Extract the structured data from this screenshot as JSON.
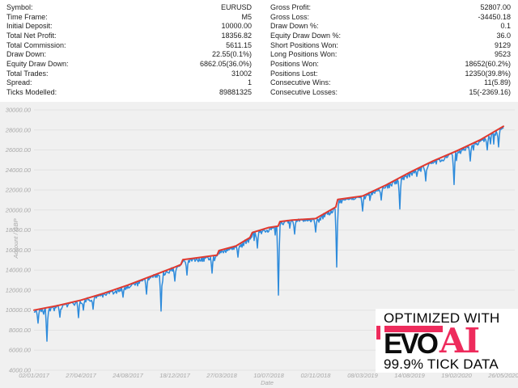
{
  "report": {
    "left": [
      {
        "label": "Symbol:",
        "value": "EURUSD"
      },
      {
        "label": "Time Frame:",
        "value": "M5"
      },
      {
        "label": "Initial Deposit:",
        "value": "10000.00"
      },
      {
        "label": "Total Net Profit:",
        "value": "18356.82"
      },
      {
        "label": "Total Commission:",
        "value": "5611.15"
      },
      {
        "label": "Draw Down:",
        "value": "22.55(0.1%)"
      },
      {
        "label": "Equity Draw Down:",
        "value": "6862.05(36.0%)"
      },
      {
        "label": "Total Trades:",
        "value": "31002"
      },
      {
        "label": "Spread:",
        "value": "1"
      },
      {
        "label": "Ticks Modelled:",
        "value": "89881325"
      }
    ],
    "right": [
      {
        "label": "Gross Profit:",
        "value": "52807.00"
      },
      {
        "label": "Gross Loss:",
        "value": "-34450.18"
      },
      {
        "label": "Draw Down %:",
        "value": "0.1"
      },
      {
        "label": "Equity Draw Down %:",
        "value": "36.0"
      },
      {
        "label": "Short Positions Won:",
        "value": "9129"
      },
      {
        "label": "Long Positions Won:",
        "value": "9523"
      },
      {
        "label": "Positions Won:",
        "value": "18652(60.2%)"
      },
      {
        "label": "Positions Lost:",
        "value": "12350(39.8%)"
      },
      {
        "label": "Consecutive Wins:",
        "value": "11(5.89)"
      },
      {
        "label": "Consecutive Losses:",
        "value": "15(-2369.16)"
      }
    ]
  },
  "logo": {
    "line1": "OPTIMIZED WITH",
    "brand_black": "EVO",
    "brand_pink": "AI",
    "line2": "99.9% TICK DATA",
    "pink": "#ee2b5c"
  },
  "colors": {
    "header_bg": "#ffffff",
    "chart_bg": "#f0f0f0",
    "grid": "#e2e2e2",
    "axis_text": "#a8a8a8",
    "equity_blue": "#2e8bdb",
    "balance_red": "#e0392f"
  },
  "chart_data": {
    "type": "line",
    "title": "",
    "xlabel": "Date",
    "ylabel": "Account / GBP",
    "grid": "horizontal",
    "legend": "none",
    "ylim": [
      4000,
      30000
    ],
    "y_ticks": [
      4000,
      6000,
      8000,
      10000,
      12000,
      14000,
      16000,
      18000,
      20000,
      22000,
      24000,
      26000,
      28000,
      30000
    ],
    "x_tick_labels": [
      "02/01/2017",
      "27/04/2017",
      "24/08/2017",
      "18/12/2017",
      "27/03/2018",
      "10/07/2018",
      "02/11/2018",
      "08/03/2019",
      "14/08/2019",
      "19/02/2020",
      "26/05/2020"
    ],
    "series": [
      {
        "name": "Equity",
        "color": "#2e8bdb",
        "style": "noisy-below-balance",
        "noise": {
          "seed": 42,
          "max_minor": 420,
          "spike_prob": 0.06,
          "max_spike": 1000
        },
        "spikes": [
          [
            0.008,
            8700
          ],
          [
            0.028,
            6900
          ],
          [
            0.055,
            9300
          ],
          [
            0.095,
            9250
          ],
          [
            0.105,
            10000
          ],
          [
            0.125,
            10100
          ],
          [
            0.19,
            11300
          ],
          [
            0.24,
            11600
          ],
          [
            0.27,
            9900
          ],
          [
            0.3,
            12900
          ],
          [
            0.326,
            13500
          ],
          [
            0.38,
            13700
          ],
          [
            0.435,
            15300
          ],
          [
            0.475,
            16200
          ],
          [
            0.52,
            11500
          ],
          [
            0.555,
            17600
          ],
          [
            0.6,
            17800
          ],
          [
            0.645,
            14300
          ],
          [
            0.7,
            19900
          ],
          [
            0.74,
            21000
          ],
          [
            0.78,
            20100
          ],
          [
            0.835,
            22900
          ],
          [
            0.895,
            22550
          ],
          [
            0.93,
            24900
          ],
          [
            0.965,
            26000
          ],
          [
            0.99,
            26300
          ]
        ]
      },
      {
        "name": "Balance",
        "color": "#e0392f",
        "anchors": [
          [
            0.0,
            10000
          ],
          [
            0.05,
            10450
          ],
          [
            0.1,
            11000
          ],
          [
            0.15,
            11700
          ],
          [
            0.2,
            12500
          ],
          [
            0.25,
            13400
          ],
          [
            0.3,
            14300
          ],
          [
            0.313,
            14550
          ],
          [
            0.317,
            15050
          ],
          [
            0.35,
            15250
          ],
          [
            0.39,
            15500
          ],
          [
            0.394,
            15950
          ],
          [
            0.43,
            16400
          ],
          [
            0.46,
            17250
          ],
          [
            0.465,
            17750
          ],
          [
            0.5,
            18250
          ],
          [
            0.52,
            18400
          ],
          [
            0.524,
            18850
          ],
          [
            0.55,
            19000
          ],
          [
            0.6,
            19150
          ],
          [
            0.643,
            20300
          ],
          [
            0.647,
            21050
          ],
          [
            0.7,
            21400
          ],
          [
            0.75,
            22500
          ],
          [
            0.8,
            23750
          ],
          [
            0.85,
            24900
          ],
          [
            0.9,
            25900
          ],
          [
            0.95,
            27000
          ],
          [
            1.0,
            28360
          ]
        ]
      }
    ]
  }
}
